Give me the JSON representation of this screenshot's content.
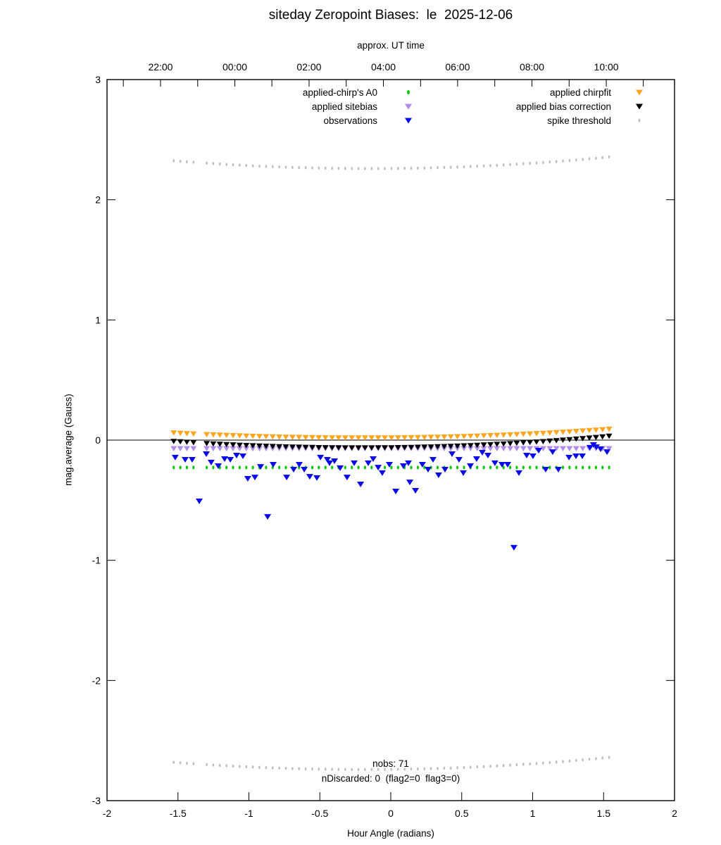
{
  "title": "siteday Zeropoint Biases:  le  2025-12-06",
  "axes": {
    "top": {
      "label": "approx. UT time"
    },
    "bottom": {
      "label": "Hour Angle (radians)"
    },
    "left": {
      "label": "mag.average (Gauss)"
    }
  },
  "annotations": {
    "nobs": "nobs: 71",
    "ndiscarded": "nDiscarded: 0  (flag2=0  flag3=0)"
  },
  "legend": {
    "left": [
      {
        "label": "applied-chirp's A0",
        "marker": "dot",
        "color": "#00C800"
      },
      {
        "label": "applied sitebias",
        "marker": "triangle",
        "color": "#B28CEC"
      },
      {
        "label": "observations",
        "marker": "triangle",
        "color": "#0B0BE6"
      }
    ],
    "right": [
      {
        "label": "applied chirpfit",
        "marker": "triangle",
        "color": "#FFA51E"
      },
      {
        "label": "applied bias correction",
        "marker": "triangle",
        "color": "#000000"
      },
      {
        "label": "spike threshold",
        "marker": "dot",
        "color": "#BDBDBD"
      }
    ]
  },
  "chart_data": {
    "type": "scatter",
    "title": "siteday Zeropoint Biases:  le  2025-12-06",
    "xlabel": "Hour Angle (radians)",
    "ylabel": "mag.average (Gauss)",
    "x2label": "approx. UT time",
    "xlim": [
      -2,
      2
    ],
    "ylim": [
      -3,
      3
    ],
    "x_ticks": [
      -2,
      -1.5,
      -1,
      -0.5,
      0,
      0.5,
      1,
      1.5,
      2
    ],
    "y_ticks": [
      -3,
      -2,
      -1,
      0,
      1,
      2,
      3
    ],
    "x2_ticks": [
      {
        "label": "22:00",
        "x": -1.623
      },
      {
        "label": "00:00",
        "x": -1.099
      },
      {
        "label": "02:00",
        "x": -0.576
      },
      {
        "label": "04:00",
        "x": -0.052
      },
      {
        "label": "06:00",
        "x": 0.471
      },
      {
        "label": "08:00",
        "x": 0.995
      },
      {
        "label": "10:00",
        "x": 1.519
      }
    ],
    "x2_minor": [
      -1.885,
      -1.361,
      -0.838,
      -0.314,
      0.21,
      0.733,
      1.257,
      1.78
    ],
    "zero_line": 0,
    "series": [
      {
        "name": "spike threshold (upper)",
        "marker": "dot",
        "color": "#BDBDBD",
        "size": [
          1.3,
          2.2
        ],
        "gen": {
          "x_start": -1.53,
          "x_step": 0.0465,
          "n": 67,
          "skip": [
            4
          ],
          "poly": [
            2.26,
            0.01,
            0.034
          ]
        }
      },
      {
        "name": "spike threshold (lower)",
        "marker": "dot",
        "color": "#BDBDBD",
        "size": [
          1.3,
          2.2
        ],
        "gen": {
          "x_start": -1.53,
          "x_step": 0.0465,
          "n": 67,
          "skip": [
            4
          ],
          "poly": [
            -2.74,
            0.013,
            0.0337
          ]
        }
      },
      {
        "name": "applied-chirp's A0",
        "marker": "dot",
        "color": "#00C800",
        "size": [
          1.6,
          2.6
        ],
        "gen": {
          "x_start": -1.53,
          "x_step": 0.0465,
          "n": 67,
          "skip": [
            4
          ],
          "poly": [
            -0.228,
            0,
            0
          ]
        }
      },
      {
        "name": "applied chirpfit",
        "marker": "triangle",
        "color": "#FFA51E",
        "tri": [
          9,
          7.5
        ],
        "gen": {
          "x_start": -1.53,
          "x_step": 0.0465,
          "n": 67,
          "skip": [
            4
          ],
          "poly": [
            0.018,
            0.0098,
            0.024
          ]
        }
      },
      {
        "name": "applied sitebias",
        "marker": "triangle",
        "color": "#B28CEC",
        "tri": [
          9,
          7.5
        ],
        "gen": {
          "x_start": -1.53,
          "x_step": 0.0465,
          "n": 67,
          "skip": [
            4
          ],
          "poly": [
            -0.072,
            0,
            0
          ]
        }
      },
      {
        "name": "applied bias correction",
        "marker": "triangle",
        "color": "#000000",
        "tri": [
          9,
          7.5
        ],
        "gen": {
          "x_start": -1.53,
          "x_step": 0.0465,
          "n": 67,
          "skip": [
            4
          ],
          "poly": [
            -0.064,
            0.0137,
            0.0315
          ]
        }
      },
      {
        "name": "observations",
        "marker": "triangle",
        "color": "#0B0BE6",
        "tri": [
          10,
          8
        ],
        "points": [
          [
            -1.519,
            -0.146
          ],
          [
            -1.449,
            -0.164
          ],
          [
            -1.4,
            -0.164
          ],
          [
            -1.35,
            -0.51
          ],
          [
            -1.3,
            -0.117
          ],
          [
            -1.266,
            -0.187
          ],
          [
            -1.216,
            -0.217
          ],
          [
            -1.171,
            -0.158
          ],
          [
            -1.131,
            -0.164
          ],
          [
            -1.087,
            -0.129
          ],
          [
            -1.042,
            -0.135
          ],
          [
            -1.008,
            -0.322
          ],
          [
            -0.958,
            -0.311
          ],
          [
            -0.918,
            -0.223
          ],
          [
            -0.868,
            -0.639
          ],
          [
            -0.829,
            -0.205
          ],
          [
            -0.734,
            -0.311
          ],
          [
            -0.685,
            -0.246
          ],
          [
            -0.645,
            -0.205
          ],
          [
            -0.61,
            -0.246
          ],
          [
            -0.571,
            -0.305
          ],
          [
            -0.521,
            -0.316
          ],
          [
            -0.496,
            -0.146
          ],
          [
            -0.447,
            -0.164
          ],
          [
            -0.432,
            -0.193
          ],
          [
            -0.397,
            -0.176
          ],
          [
            -0.357,
            -0.234
          ],
          [
            -0.308,
            -0.311
          ],
          [
            -0.258,
            -0.193
          ],
          [
            -0.213,
            -0.369
          ],
          [
            -0.159,
            -0.193
          ],
          [
            -0.124,
            -0.158
          ],
          [
            -0.089,
            -0.229
          ],
          [
            -0.06,
            -0.275
          ],
          [
            -0.01,
            -0.205
          ],
          [
            0.035,
            -0.428
          ],
          [
            0.089,
            -0.217
          ],
          [
            0.124,
            -0.193
          ],
          [
            0.134,
            -0.352
          ],
          [
            0.174,
            -0.422
          ],
          [
            0.223,
            -0.205
          ],
          [
            0.263,
            -0.246
          ],
          [
            0.298,
            -0.164
          ],
          [
            0.337,
            -0.293
          ],
          [
            0.382,
            -0.246
          ],
          [
            0.432,
            -0.117
          ],
          [
            0.481,
            -0.164
          ],
          [
            0.511,
            -0.275
          ],
          [
            0.561,
            -0.217
          ],
          [
            0.605,
            -0.158
          ],
          [
            0.645,
            -0.105
          ],
          [
            0.685,
            -0.129
          ],
          [
            0.734,
            -0.193
          ],
          [
            0.784,
            -0.205
          ],
          [
            0.824,
            -0.205
          ],
          [
            0.868,
            -0.896
          ],
          [
            0.903,
            -0.275
          ],
          [
            0.958,
            -0.129
          ],
          [
            1.002,
            -0.135
          ],
          [
            1.042,
            -0.088
          ],
          [
            1.092,
            -0.246
          ],
          [
            1.141,
            -0.1
          ],
          [
            1.181,
            -0.246
          ],
          [
            1.256,
            -0.146
          ],
          [
            1.305,
            -0.135
          ],
          [
            1.35,
            -0.135
          ],
          [
            1.404,
            -0.064
          ],
          [
            1.429,
            -0.041
          ],
          [
            1.449,
            -0.059
          ],
          [
            1.479,
            -0.076
          ],
          [
            1.524,
            -0.1
          ]
        ]
      }
    ]
  }
}
